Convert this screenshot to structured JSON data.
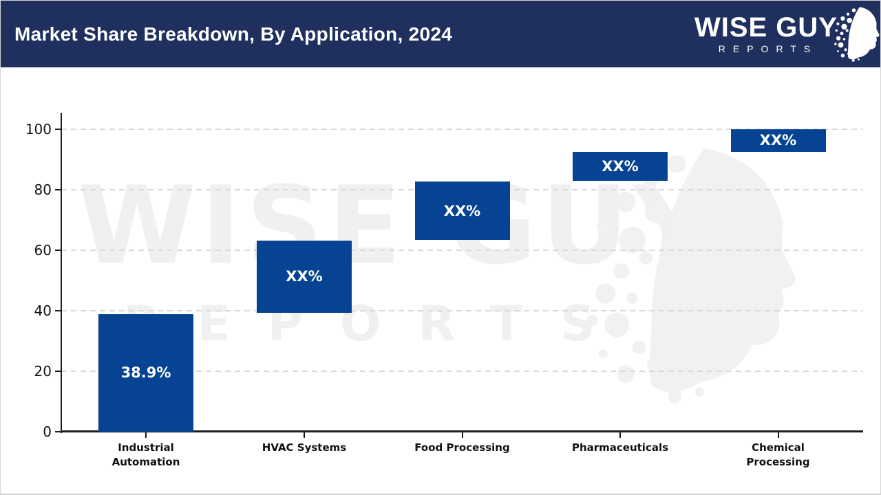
{
  "header": {
    "title": "Market Share Breakdown, By Application, 2024",
    "logo": {
      "line1": "WISE GUY",
      "line2": "REPORTS"
    }
  },
  "watermark": {
    "line1": "WISE GUY",
    "line2": "REPORTS"
  },
  "chart_data": {
    "type": "bar",
    "subtype": "waterfall",
    "title": "Market Share Breakdown, By Application, 2024",
    "categories": [
      "Industrial Automation",
      "HVAC Systems",
      "Food Processing",
      "Pharmaceuticals",
      "Chemical Processing"
    ],
    "category_lines": [
      [
        "Industrial",
        "Automation"
      ],
      [
        "HVAC Systems"
      ],
      [
        "Food Processing"
      ],
      [
        "Pharmaceuticals"
      ],
      [
        "Chemical",
        "Processing"
      ]
    ],
    "segments": [
      {
        "category": "Industrial Automation",
        "start": 0,
        "end": 38.9,
        "label": "38.9%"
      },
      {
        "category": "HVAC Systems",
        "start": 39.4,
        "end": 63.2,
        "label": "XX%"
      },
      {
        "category": "Food Processing",
        "start": 63.4,
        "end": 82.7,
        "label": "XX%"
      },
      {
        "category": "Pharmaceuticals",
        "start": 83.0,
        "end": 92.5,
        "label": "XX%"
      },
      {
        "category": "Chemical Processing",
        "start": 92.6,
        "end": 100,
        "label": "XX%"
      }
    ],
    "yticks": [
      0,
      20,
      40,
      60,
      80,
      100
    ],
    "ylim": [
      0,
      105
    ],
    "grid": "horizontal-dashed",
    "legend": "none",
    "bar_color": "#064392",
    "bar_label_color": "#ffffff"
  }
}
